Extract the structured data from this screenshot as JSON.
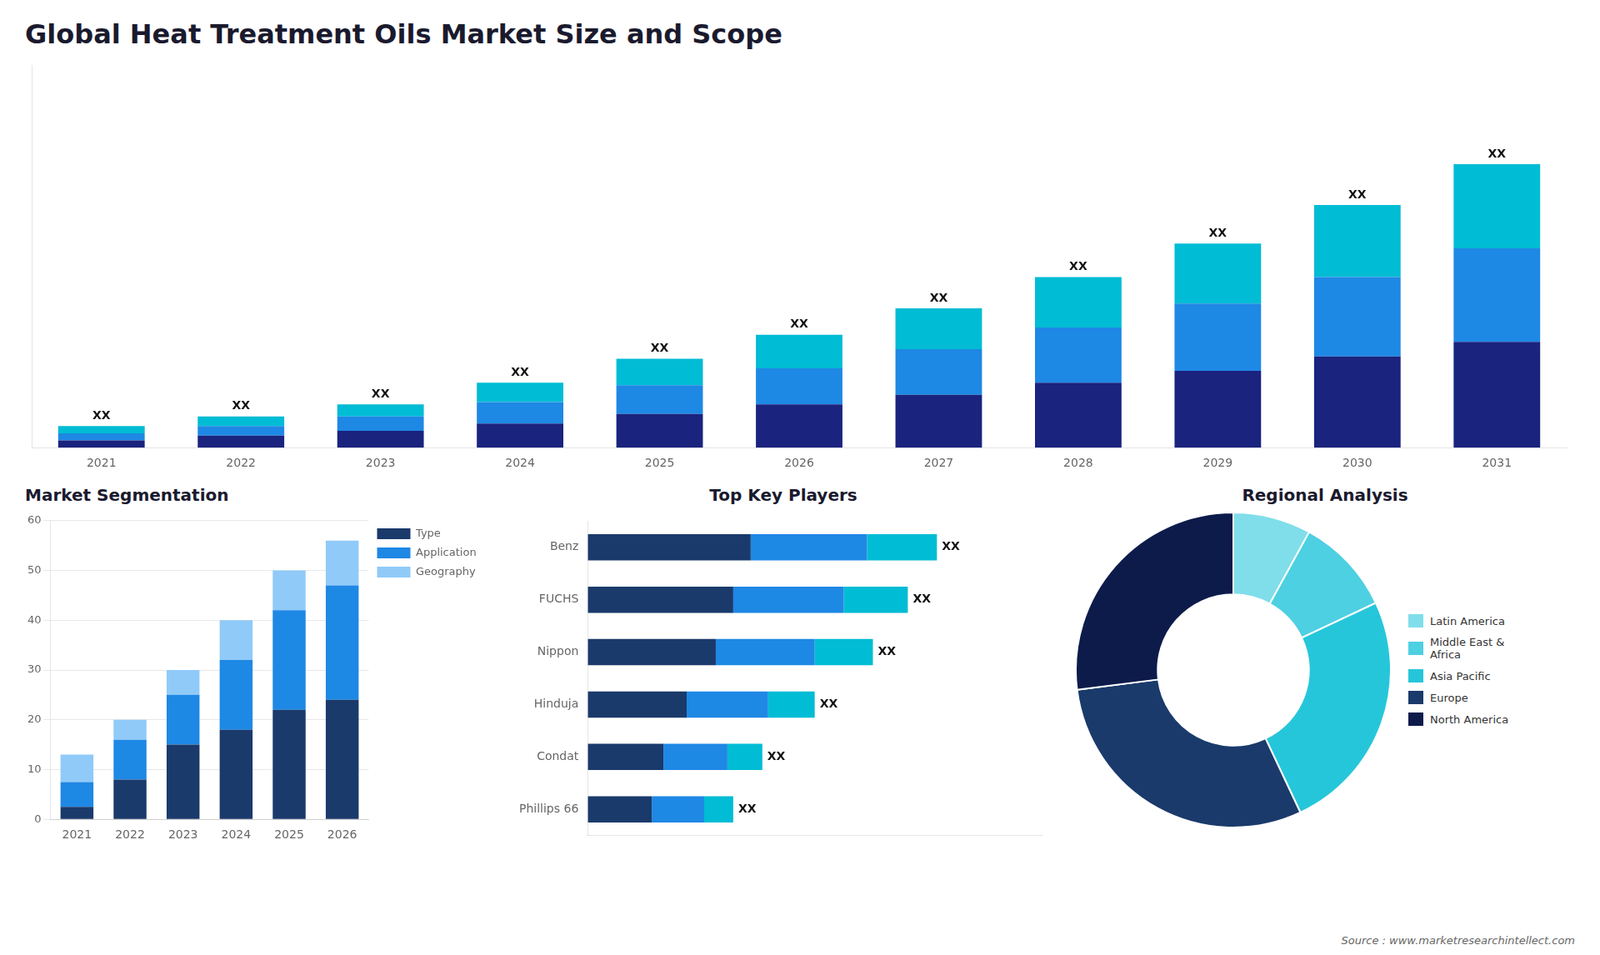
{
  "title": "Global Heat Treatment Oils Market Size and Scope",
  "annotations": [
    "Source : www.marketresearchintellect.com"
  ],
  "chart_data": [
    {
      "type": "bar",
      "stacked": true,
      "categories": [
        "2021",
        "2022",
        "2023",
        "2024",
        "2025",
        "2026",
        "2027",
        "2028",
        "2029",
        "2030",
        "2031"
      ],
      "series": [
        {
          "color": "#1a237e",
          "values": [
            3,
            5,
            7,
            10,
            14,
            18,
            22,
            27,
            32,
            38,
            44
          ]
        },
        {
          "color": "#1e88e5",
          "values": [
            3,
            4,
            6,
            9,
            12,
            15,
            19,
            23,
            28,
            33,
            39
          ]
        },
        {
          "color": "#00bcd4",
          "values": [
            3,
            4,
            5,
            8,
            11,
            14,
            17,
            21,
            25,
            30,
            35
          ]
        }
      ],
      "annotations": [
        "XX",
        "XX",
        "XX",
        "XX",
        "XX",
        "XX",
        "XX",
        "XX",
        "XX",
        "XX",
        "XX"
      ],
      "ylim": [
        0,
        159.3
      ],
      "tick_labels": "x",
      "grid": false
    },
    {
      "type": "bar",
      "stacked": true,
      "title": "Market Segmentation",
      "categories": [
        "2021",
        "2022",
        "2023",
        "2024",
        "2025",
        "2026"
      ],
      "series": [
        {
          "name": "Type",
          "color": "#1a3a6b",
          "values": [
            2.5,
            8,
            15,
            18,
            22,
            24
          ]
        },
        {
          "name": "Application",
          "color": "#1e88e5",
          "values": [
            5,
            8,
            10,
            14,
            20,
            23
          ]
        },
        {
          "name": "Geography",
          "color": "#90caf9",
          "values": [
            5.5,
            4,
            5,
            8,
            8,
            9
          ]
        }
      ],
      "ylim": [
        0,
        60
      ],
      "yticks": [
        0,
        10,
        20,
        30,
        40,
        50,
        60
      ],
      "grid": true,
      "legend": "right"
    },
    {
      "type": "bar",
      "stacked": true,
      "orientation": "horizontal",
      "title": "Top Key Players",
      "categories": [
        "Benz",
        "FUCHS",
        "Nippon",
        "Hinduja",
        "Condat",
        "Phillips 66"
      ],
      "series": [
        {
          "color": "#1a3a6b",
          "values": [
            28,
            25,
            22,
            17,
            13,
            11
          ]
        },
        {
          "color": "#1e88e5",
          "values": [
            20,
            19,
            17,
            14,
            11,
            9
          ]
        },
        {
          "color": "#00bcd4",
          "values": [
            12,
            11,
            10,
            8,
            6,
            5
          ]
        }
      ],
      "annotations": [
        "XX",
        "XX",
        "XX",
        "XX",
        "XX",
        "XX"
      ],
      "xlim": [
        0,
        78
      ],
      "tick_labels": "y",
      "grid": false
    },
    {
      "type": "doughnut",
      "title": "Regional Analysis",
      "categories": [
        "Latin America",
        "Middle East &\nAfrica",
        "Asia Pacific",
        "Europe",
        "North America"
      ],
      "values": [
        8,
        10,
        25,
        30,
        27
      ],
      "colors": [
        "#80deea",
        "#4dd0e1",
        "#26c6da",
        "#1a3a6b",
        "#0d1b4b"
      ],
      "legend": "right"
    }
  ]
}
